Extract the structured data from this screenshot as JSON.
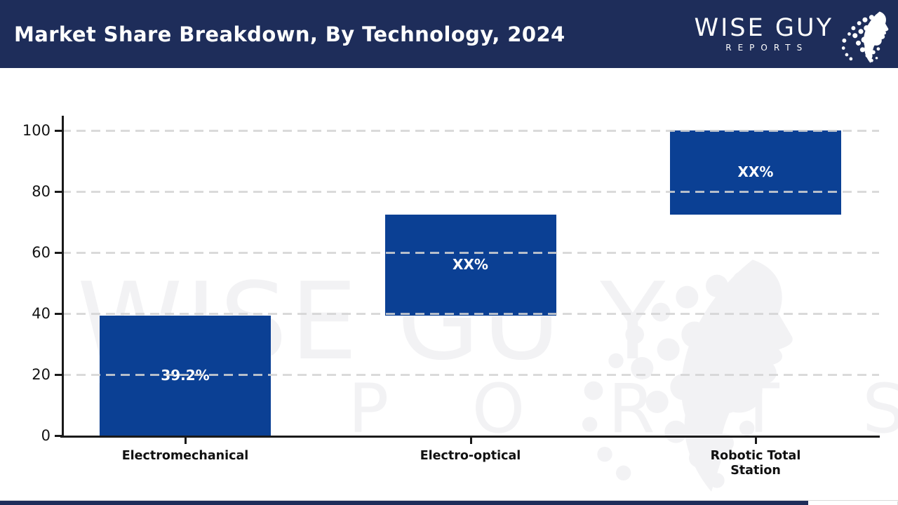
{
  "header": {
    "title": "Market Share Breakdown, By Technology, 2024",
    "logo": {
      "line1": "WISE GUY",
      "line2": "REPORTS",
      "head_icon": "dotted-face-profile"
    }
  },
  "watermark": {
    "line1": "WISE GU Y",
    "line2": "R E P O R T S"
  },
  "chart_data": {
    "type": "bar",
    "subtype": "waterfall",
    "title": "Market Share Breakdown, By Technology, 2024",
    "categories": [
      "Electromechanical",
      "Electro-optical",
      "Robotic Total\nStation"
    ],
    "segments": [
      {
        "category": "Electromechanical",
        "start": 0,
        "end": 39.2,
        "label": "39.2%"
      },
      {
        "category": "Electro-optical",
        "start": 39.2,
        "end": 72.4,
        "label": "XX%"
      },
      {
        "category": "Robotic Total Station",
        "start": 72.4,
        "end": 100,
        "label": "XX%"
      }
    ],
    "xlabel": "",
    "ylabel": "",
    "ylim": [
      0,
      100
    ],
    "yticks": [
      0,
      20,
      40,
      60,
      80,
      100
    ],
    "grid": "horizontal-dashed",
    "legend": "none",
    "bar_color": "#0b4094",
    "bar_label_color": "#ffffff"
  },
  "colors": {
    "header_bg": "#1e2d5a",
    "bar": "#0b4094",
    "grid": "#d4d4d4",
    "axis": "#1a1a1a",
    "watermark": "#f2f2f4",
    "footer_bar": "#1e2d5a"
  }
}
